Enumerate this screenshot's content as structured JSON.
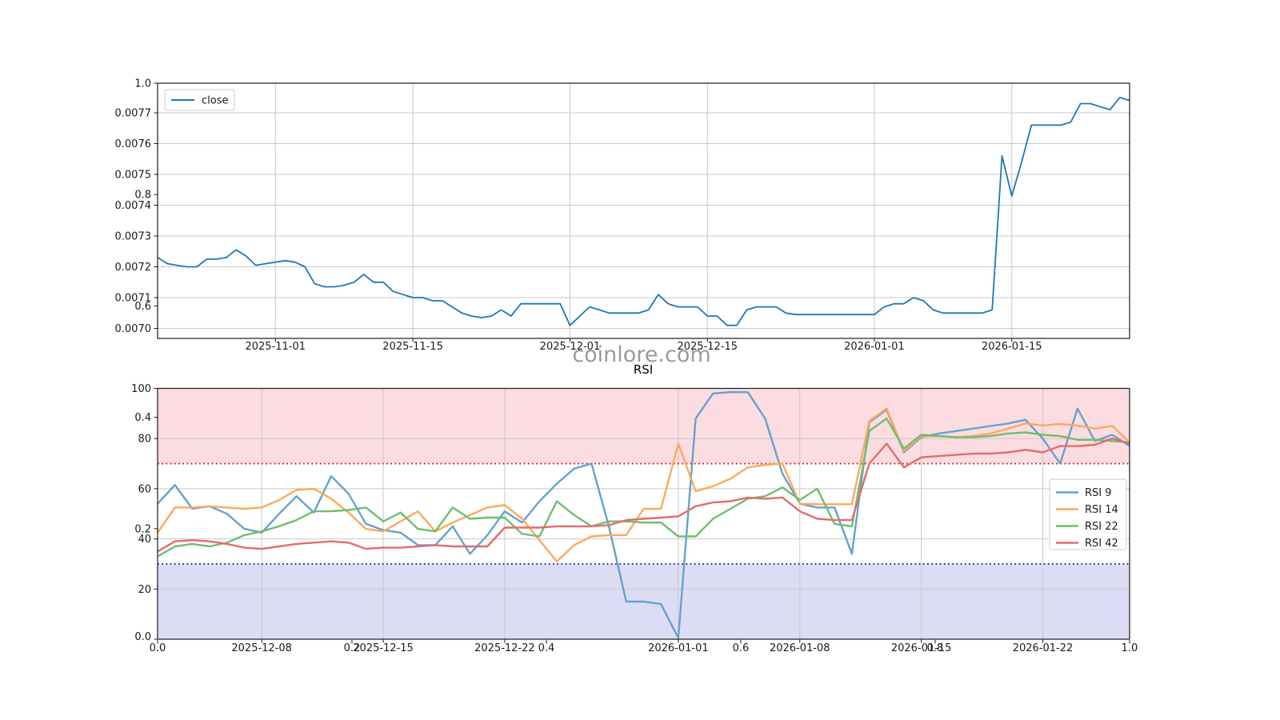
{
  "watermark": "coinlore.com",
  "overlay_axis": {
    "y_labels": [
      "1.0",
      "0.8",
      "0.6",
      "0.4",
      "0.2"
    ],
    "x_labels": [
      "0.0",
      "0.2",
      "0.4",
      "0.6",
      "0.8",
      "1.0"
    ]
  },
  "chart_data": [
    {
      "type": "line",
      "panel": "price",
      "legend_label": "close",
      "line_color": "#1f77b4",
      "grid": true,
      "x_start_date": "2025-10-20",
      "x_end_date": "2026-01-27",
      "x_tick_labels": [
        "2025-11-01",
        "2025-11-15",
        "2025-12-01",
        "2025-12-15",
        "2026-01-01",
        "2026-01-15"
      ],
      "x_tick_indices": [
        12,
        26,
        42,
        56,
        73,
        87
      ],
      "y_ticks": [
        0.0077,
        0.0076,
        0.0075,
        0.0074,
        0.0073,
        0.0072,
        0.0071,
        0.007
      ],
      "ylim": [
        0.00697,
        0.0078
      ],
      "values": [
        0.00723,
        0.00721,
        0.007205,
        0.0072,
        0.0072,
        0.007225,
        0.007225,
        0.00723,
        0.007255,
        0.007235,
        0.007205,
        0.00721,
        0.007215,
        0.00722,
        0.007215,
        0.0072,
        0.007145,
        0.007135,
        0.007135,
        0.00714,
        0.00715,
        0.007175,
        0.00715,
        0.00715,
        0.00712,
        0.00711,
        0.0071,
        0.0071,
        0.00709,
        0.00709,
        0.00707,
        0.00705,
        0.00704,
        0.007035,
        0.00704,
        0.00706,
        0.00704,
        0.00708,
        0.00708,
        0.00708,
        0.00708,
        0.00708,
        0.00701,
        0.00704,
        0.00707,
        0.00706,
        0.00705,
        0.00705,
        0.00705,
        0.00705,
        0.00706,
        0.00711,
        0.00708,
        0.00707,
        0.00707,
        0.00707,
        0.00704,
        0.00704,
        0.00701,
        0.00701,
        0.00706,
        0.00707,
        0.00707,
        0.00707,
        0.00705,
        0.007045,
        0.007045,
        0.007045,
        0.007045,
        0.007045,
        0.007045,
        0.007045,
        0.007045,
        0.007045,
        0.00707,
        0.00708,
        0.00708,
        0.0071,
        0.00709,
        0.00706,
        0.00705,
        0.00705,
        0.00705,
        0.00705,
        0.00705,
        0.00706,
        0.00756,
        0.00743,
        0.00754,
        0.00766,
        0.00766,
        0.00766,
        0.00766,
        0.00767,
        0.00773,
        0.00773,
        0.00772,
        0.00771,
        0.00775,
        0.00774
      ]
    },
    {
      "type": "line",
      "panel": "rsi",
      "title": "RSI",
      "grid": true,
      "x_start_date": "2025-12-02",
      "x_end_date": "2026-01-27",
      "x_tick_labels": [
        "2025-12-08",
        "2025-12-15",
        "2025-12-22",
        "2026-01-01",
        "2026-01-08",
        "2026-01-15",
        "2026-01-22"
      ],
      "x_tick_indices": [
        6,
        13,
        20,
        30,
        37,
        44,
        51
      ],
      "y_tick_values": [
        0,
        20,
        40,
        60,
        80,
        100
      ],
      "y_tick_labels": [
        "0.0",
        "20",
        "40",
        "60",
        "80",
        "100"
      ],
      "ylim": [
        0,
        100
      ],
      "overbought_level": 70,
      "oversold_level": 30,
      "band_colors": {
        "overbought": "#fbdce1",
        "oversold": "#dddcf5"
      },
      "threshold_colors": {
        "overbought": "#c81d2e",
        "oversold": "#2020b0"
      },
      "legend_position": "right",
      "series": [
        {
          "name": "RSI 9",
          "color": "#66a2cc",
          "values": [
            54,
            61.5,
            52,
            53,
            50,
            44,
            42.5,
            50,
            57,
            50.5,
            65,
            58,
            46,
            43.5,
            42.5,
            37.5,
            37.5,
            45,
            34,
            41.5,
            51,
            46.5,
            55,
            62,
            68,
            70,
            45,
            15,
            15,
            14,
            0.5,
            88,
            98,
            98.5,
            98.5,
            88,
            66,
            54,
            52.5,
            52.5,
            34,
            86.5,
            91.5,
            74.5,
            80.5,
            82,
            83,
            84,
            85,
            86,
            87.5,
            80,
            70,
            92,
            79,
            81.5,
            77
          ]
        },
        {
          "name": "RSI 14",
          "color": "#ffa85b",
          "values": [
            42.5,
            52.5,
            52.5,
            53,
            52.5,
            52,
            52.5,
            55.5,
            59.5,
            60,
            56,
            50.5,
            44,
            43,
            47,
            51,
            43,
            46.5,
            49.5,
            52.5,
            53.5,
            48,
            39.5,
            31,
            37.5,
            41,
            41.5,
            41.5,
            52,
            52,
            78,
            59,
            61,
            64,
            68.5,
            69.5,
            70,
            54,
            53.8,
            53.8,
            53.8,
            87,
            92,
            75,
            81,
            81,
            80.5,
            81,
            82,
            84,
            86,
            85.2,
            85.8,
            85.2,
            84,
            85,
            78.5
          ]
        },
        {
          "name": "RSI 22",
          "color": "#6fbe6f",
          "values": [
            33,
            37,
            38,
            37,
            38.5,
            41.5,
            43,
            45,
            47.5,
            51,
            51,
            51.5,
            52.5,
            47,
            50.5,
            44,
            43,
            52.5,
            48,
            48.5,
            48.5,
            42,
            41,
            55,
            49.5,
            45,
            47,
            47,
            46.5,
            46.5,
            41,
            41,
            48,
            52,
            56,
            57,
            60.5,
            55.5,
            60,
            46,
            45,
            83,
            88,
            76,
            81.5,
            81,
            80.5,
            80.5,
            81,
            82,
            82.5,
            81.5,
            81,
            79.5,
            79.5,
            79,
            78.5
          ]
        },
        {
          "name": "RSI 42",
          "color": "#e36c6d",
          "values": [
            35,
            39,
            39.5,
            39,
            38,
            36.5,
            36,
            37,
            38,
            38.5,
            39,
            38.5,
            36,
            36.5,
            36.5,
            37,
            37.5,
            37,
            37,
            37,
            44.5,
            44.5,
            44.5,
            45,
            45,
            45,
            45.5,
            47.5,
            48,
            48.5,
            49,
            53,
            54.5,
            55,
            56.5,
            56,
            56.5,
            51,
            48,
            47.5,
            47.5,
            70,
            78,
            68.5,
            72.5,
            73,
            73.5,
            74,
            74,
            74.5,
            75.5,
            74.5,
            77,
            77,
            77.5,
            80,
            78
          ]
        }
      ]
    }
  ]
}
